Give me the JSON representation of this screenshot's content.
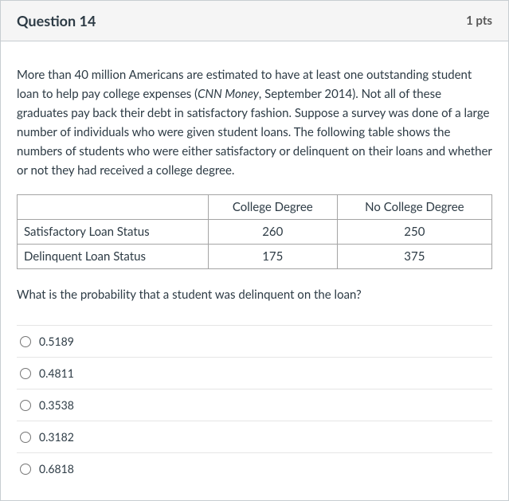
{
  "header": {
    "title": "Question 14",
    "points": "1 pts"
  },
  "prompt": {
    "text_before_italic": "More than 40 million Americans are estimated to have at least one outstanding student loan to help pay college expenses (",
    "italic": "CNN Money",
    "text_after_italic": ", September 2014).  Not all of these graduates pay back their debt in satisfactory fashion.  Suppose a survey was done of a large number of individuals who were given student loans.  The following table shows the numbers of students who were either satisfactory or delinquent on their loans and whether or not they had received a college degree."
  },
  "table": {
    "col1": "College Degree",
    "col2": "No College Degree",
    "rows": [
      {
        "label": "Satisfactory Loan Status",
        "c1": "260",
        "c2": "250"
      },
      {
        "label": "Delinquent Loan Status",
        "c1": "175",
        "c2": "375"
      }
    ]
  },
  "followup": "What is the probability that a student was delinquent on the loan?",
  "answers": [
    {
      "label": "0.5189"
    },
    {
      "label": "0.4811"
    },
    {
      "label": "0.3538"
    },
    {
      "label": "0.3182"
    },
    {
      "label": "0.6818"
    }
  ]
}
